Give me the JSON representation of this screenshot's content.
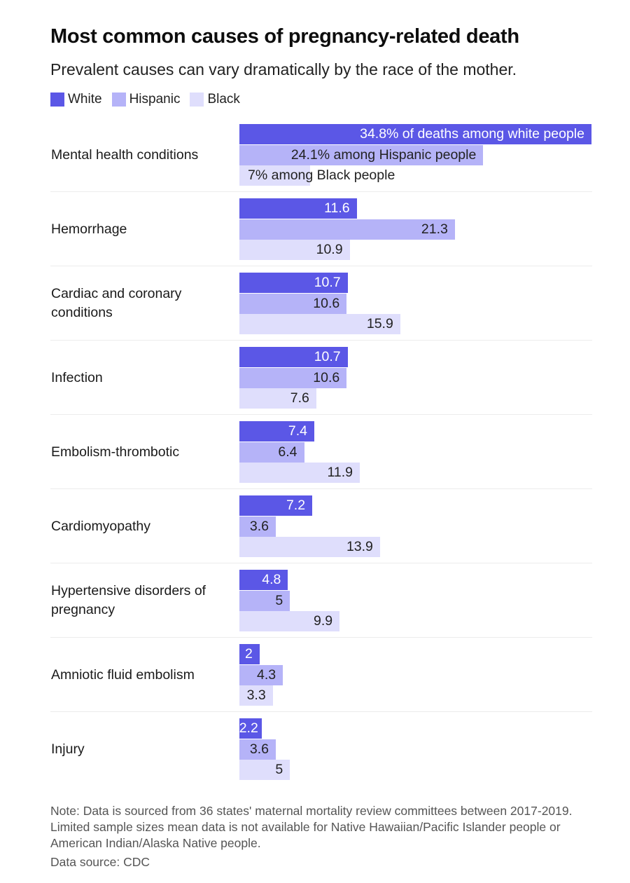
{
  "chart_data": {
    "type": "bar",
    "orientation": "horizontal",
    "title": "Most common causes of pregnancy-related death",
    "subtitle": "Prevalent causes can vary dramatically by the race of the mother.",
    "xlabel": "",
    "ylabel": "",
    "unit": "% of deaths",
    "xlim": [
      0,
      34.8
    ],
    "grid": false,
    "legend_position": "top-left",
    "categories": [
      [
        "Mental health conditions"
      ],
      [
        "Hemorrhage"
      ],
      [
        "Cardiac and coronary",
        "conditions"
      ],
      [
        "Infection"
      ],
      [
        "Embolism-thrombotic"
      ],
      [
        "Cardiomyopathy"
      ],
      [
        "Hypertensive disorders of",
        "pregnancy"
      ],
      [
        "Amniotic fluid embolism"
      ],
      [
        "Injury"
      ]
    ],
    "series": [
      {
        "name": "White",
        "color": "#5b57e6",
        "label_color": "#ffffff",
        "values": [
          34.8,
          11.6,
          10.7,
          10.7,
          7.4,
          7.2,
          4.8,
          2,
          2.2
        ],
        "labels": [
          "34.8% of deaths among white people",
          "11.6",
          "10.7",
          "10.7",
          "7.4",
          "7.2",
          "4.8",
          "2",
          "2.2"
        ]
      },
      {
        "name": "Hispanic",
        "color": "#b5b3f8",
        "label_color": "#222222",
        "values": [
          24.1,
          21.3,
          10.6,
          10.6,
          6.4,
          3.6,
          5,
          4.3,
          3.6
        ],
        "labels": [
          "24.1% among Hispanic people",
          "21.3",
          "10.6",
          "10.6",
          "6.4",
          "3.6",
          "5",
          "4.3",
          "3.6"
        ]
      },
      {
        "name": "Black",
        "color": "#dfdefc",
        "label_color": "#222222",
        "values": [
          7,
          10.9,
          15.9,
          7.6,
          11.9,
          13.9,
          9.9,
          3.3,
          5
        ],
        "labels": [
          "7% among Black people",
          "10.9",
          "15.9",
          "7.6",
          "11.9",
          "13.9",
          "9.9",
          "3.3",
          "5"
        ]
      }
    ]
  },
  "footer": {
    "note": "Note: Data is sourced from 36 states' maternal mortality review committees between 2017-2019. Limited sample sizes mean data is not available for Native Hawaiian/Pacific Islander people or American Indian/Alaska Native people.",
    "source": "Data source: CDC"
  }
}
